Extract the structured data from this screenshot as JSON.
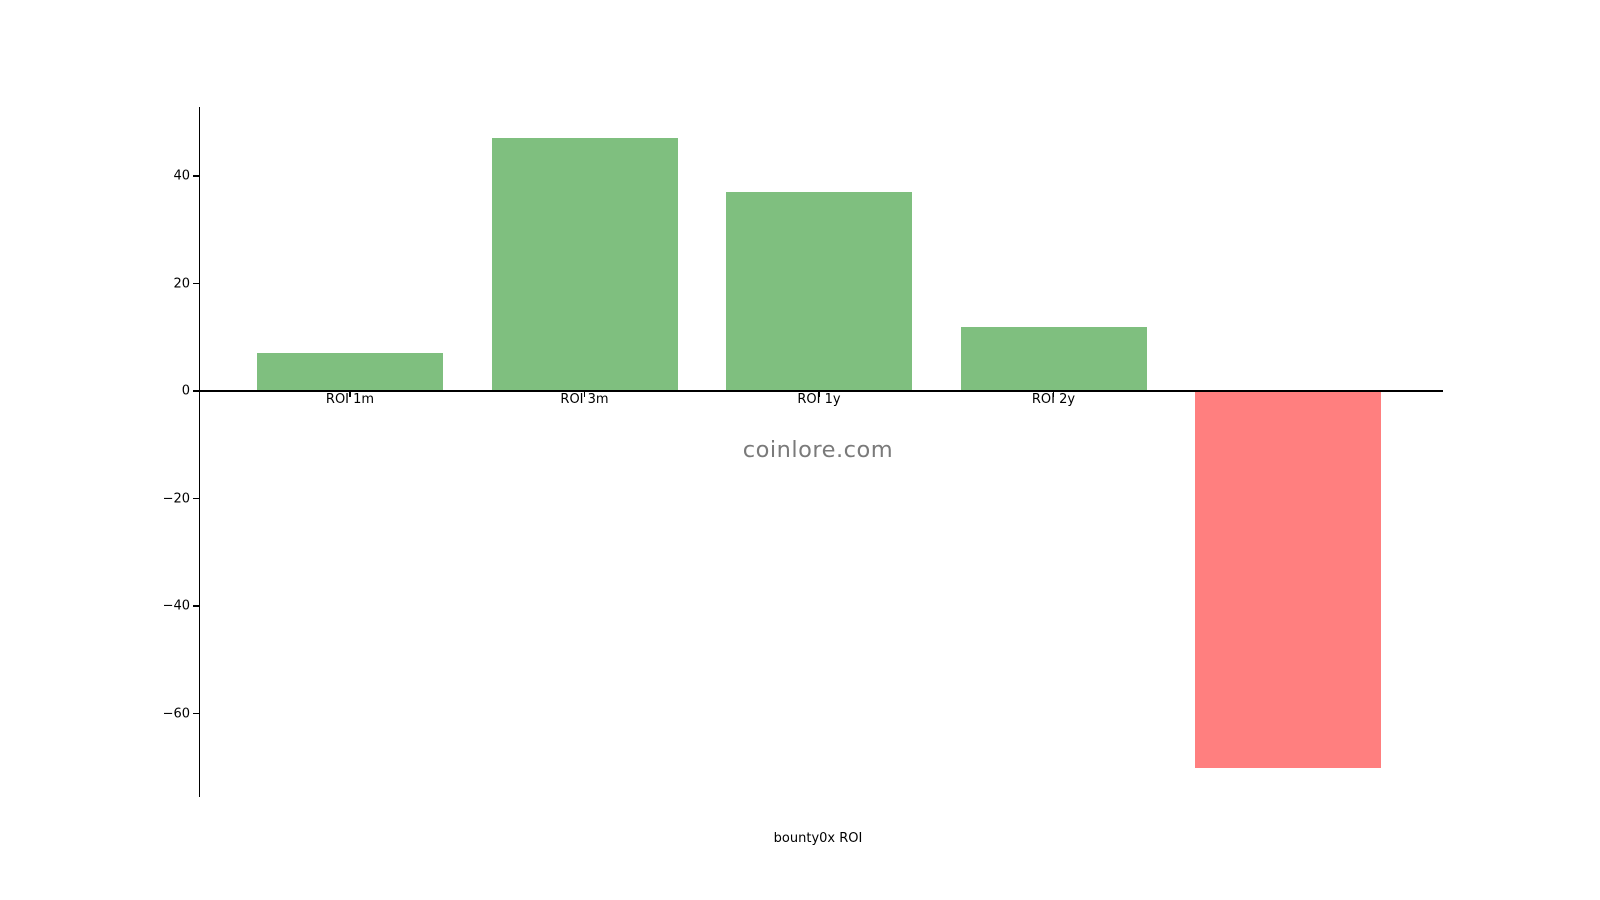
{
  "chart": {
    "watermark": "coinlore.com",
    "background_color": "#ffffff",
    "positive_bar_color": "#7fbf7f",
    "negative_bar_color": "#ff7f7f",
    "axis_color": "#000000",
    "text_color": "#000000",
    "watermark_color": "#7a7a7a"
  },
  "chart_data": {
    "type": "bar",
    "title": "",
    "xlabel": "bounty0x ROI",
    "ylabel": "",
    "categories": [
      "ROI 1m",
      "ROI 3m",
      "ROI 1y",
      "ROI 2y",
      ""
    ],
    "values": [
      7,
      47,
      37,
      12,
      -70
    ],
    "yticks": [
      40,
      20,
      0,
      -20,
      -40,
      -60
    ],
    "ytick_labels": [
      "40",
      "20",
      "0",
      "−20",
      "−40",
      "−60"
    ],
    "ylim": [
      -75.5,
      53
    ],
    "grid": false,
    "legend": null,
    "color_rule": "green if value >= 0 else red"
  }
}
